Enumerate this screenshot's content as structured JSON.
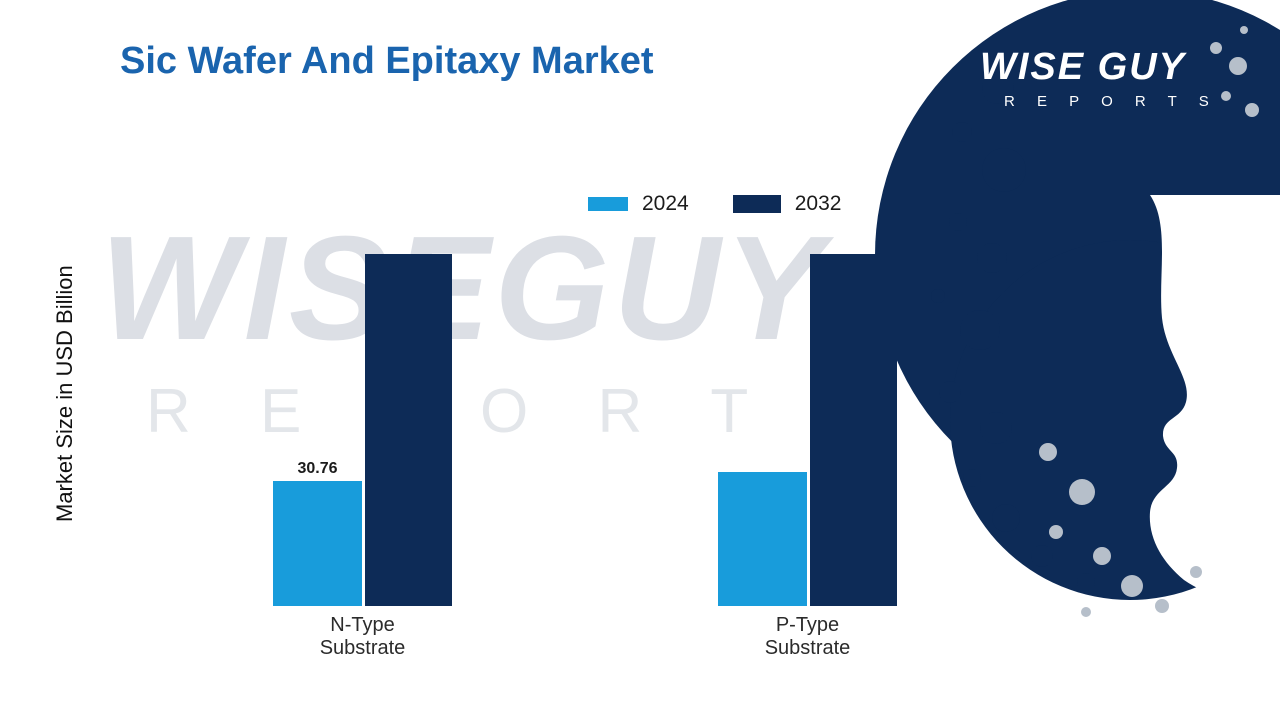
{
  "title": "Sic Wafer And Epitaxy Market",
  "brand": {
    "name": "WISE GUY",
    "tagline": "R E P O R T S"
  },
  "watermark": {
    "line1": "WISEGUY",
    "line2": "R E P O R T S"
  },
  "colors": {
    "title_blue": "#1a64ae",
    "bar_light_blue": "#189cdb",
    "bar_navy": "#0d2b57",
    "watermark_gray": "#dcdfe5",
    "dot_gray": "#b6bfca"
  },
  "chart_data": {
    "type": "bar",
    "categories": [
      "N-Type Substrate",
      "P-Type Substrate"
    ],
    "series": [
      {
        "name": "2024",
        "color": "#189cdb",
        "values": [
          30.76,
          32.8
        ],
        "labels": [
          "30.76",
          ""
        ]
      },
      {
        "name": "2032",
        "color": "#0d2b57",
        "values": [
          86.4,
          86.4
        ],
        "labels": [
          "",
          ""
        ]
      }
    ],
    "ylabel": "Market Size in USD Billion",
    "ylim": [
      0,
      90
    ],
    "legend_position": "top",
    "grid": false,
    "note": "2032 and P-Type 2024 bar values estimated from bar heights; only 30.76 is labeled on the chart"
  }
}
